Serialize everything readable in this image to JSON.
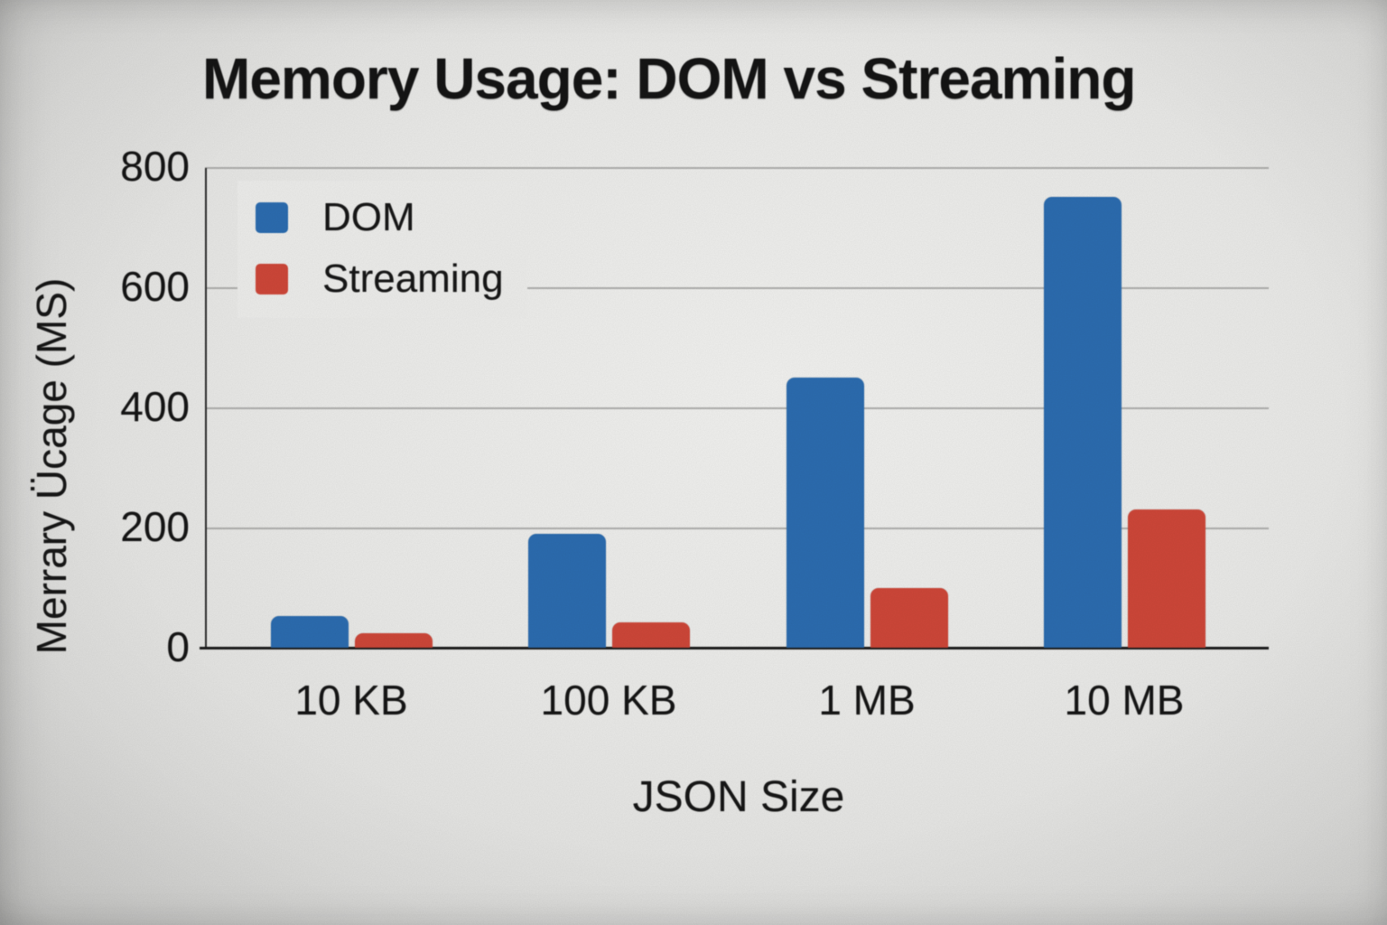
{
  "chart": {
    "title": "Memory Usage: DOM vs Streaming",
    "ylabel_display": "Merrary Ücage (MS)",
    "xlabel_display": "JSON Size"
  },
  "chart_data": {
    "type": "bar",
    "title": "Memory Usage: DOM vs Streaming",
    "xlabel": "JSON Size",
    "ylabel": "Merrary Ücage (MS)",
    "categories": [
      "10 KB",
      "100 KB",
      "1 MB",
      "10 MB"
    ],
    "series": [
      {
        "name": "DOM",
        "color": "#2b6bae",
        "values": [
          52,
          190,
          450,
          750
        ]
      },
      {
        "name": "Streaming",
        "color": "#cc4638",
        "values": [
          24,
          42,
          100,
          230
        ]
      }
    ],
    "ylim": [
      0,
      800
    ],
    "yticks": [
      0,
      200,
      400,
      600,
      800
    ],
    "grid": true,
    "legend_position": "top-left"
  },
  "colors": {
    "paper": "#e9e9e7",
    "text": "#151515",
    "gridline": "#a2a2a0",
    "axis": "#1b1b1b"
  }
}
